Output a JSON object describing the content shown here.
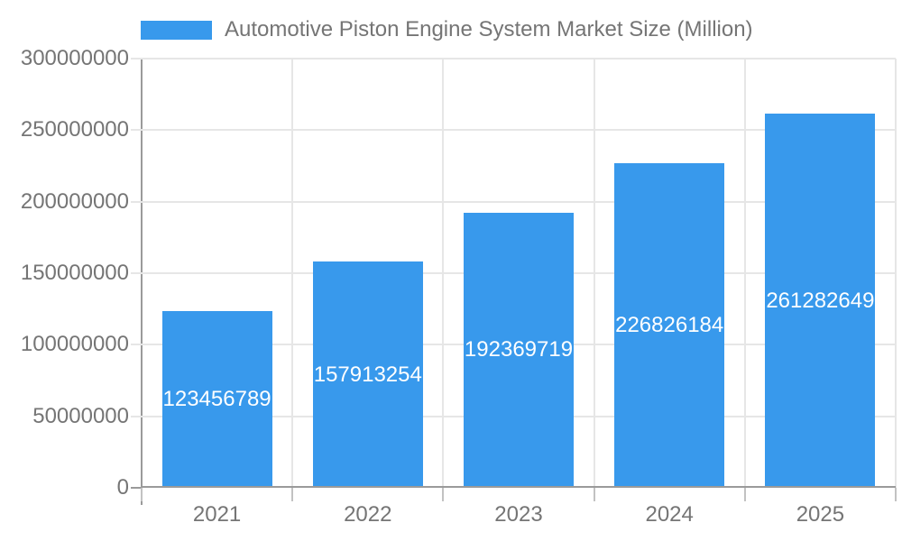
{
  "chart_data": {
    "type": "bar",
    "title": "Automotive Piston Engine System Market Size (Million)",
    "categories": [
      "2021",
      "2022",
      "2023",
      "2024",
      "2025"
    ],
    "values": [
      123456789,
      157913254,
      192369719,
      226826184,
      261282649
    ],
    "bar_labels": [
      "123456789",
      "157913254",
      "192369719",
      "226826184",
      "261282649"
    ],
    "xlabel": "",
    "ylabel": "",
    "ylim": [
      0,
      300000000
    ],
    "yticks": [
      0,
      50000000,
      100000000,
      150000000,
      200000000,
      250000000,
      300000000
    ],
    "legend_position": "top",
    "grid": true,
    "colors": {
      "bar": "#3899EC",
      "bar_label": "#ffffff",
      "tick_label": "#757575",
      "gridline": "#e6e6e6",
      "axis": "#9a9a9a",
      "background": "#ffffff"
    }
  }
}
